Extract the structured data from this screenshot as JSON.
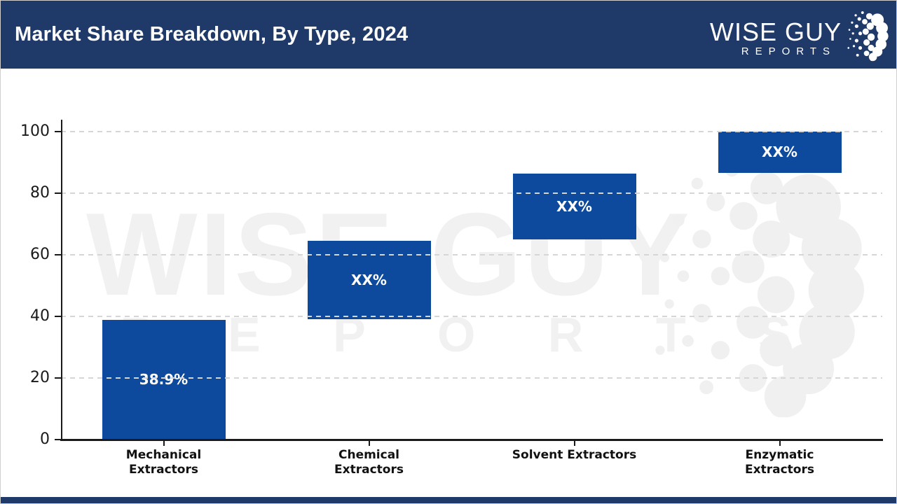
{
  "header": {
    "title": "Market Share Breakdown, By Type, 2024",
    "logo": {
      "primary": "WISE GUY",
      "secondary": "REPORTS"
    }
  },
  "watermark": {
    "primary": "WISE GUY",
    "secondary": "R E P O R T S"
  },
  "colors": {
    "header_bg": "#1f3a68",
    "bar_fill": "#0d4a9e",
    "bar_label_text": "#ffffff",
    "gridline": "#d6d6d6",
    "axis": "#1a1a1a",
    "watermark": "#f1f1f1"
  },
  "chart_data": {
    "type": "bar",
    "subtype": "waterfall",
    "title": "Market Share Breakdown, By Type, 2024",
    "xlabel": "",
    "ylabel": "",
    "ylim": [
      0,
      100
    ],
    "y_ticks": [
      0,
      20,
      40,
      60,
      80,
      100
    ],
    "grid": "horizontal-dashed",
    "legend": "none",
    "categories": [
      [
        "Mechanical",
        "Extractors"
      ],
      [
        "Chemical",
        "Extractors"
      ],
      [
        "Solvent Extractors"
      ],
      [
        "Enzymatic",
        "Extractors"
      ]
    ],
    "segments": [
      {
        "category": "Mechanical Extractors",
        "start": 0,
        "end": 38.9,
        "label": "38.9%"
      },
      {
        "category": "Chemical Extractors",
        "start": 39.1,
        "end": 64.5,
        "label": "XX%"
      },
      {
        "category": "Solvent Extractors",
        "start": 65.0,
        "end": 86.4,
        "label": "XX%"
      },
      {
        "category": "Enzymatic Extractors",
        "start": 86.6,
        "end": 100,
        "label": "XX%"
      }
    ]
  }
}
